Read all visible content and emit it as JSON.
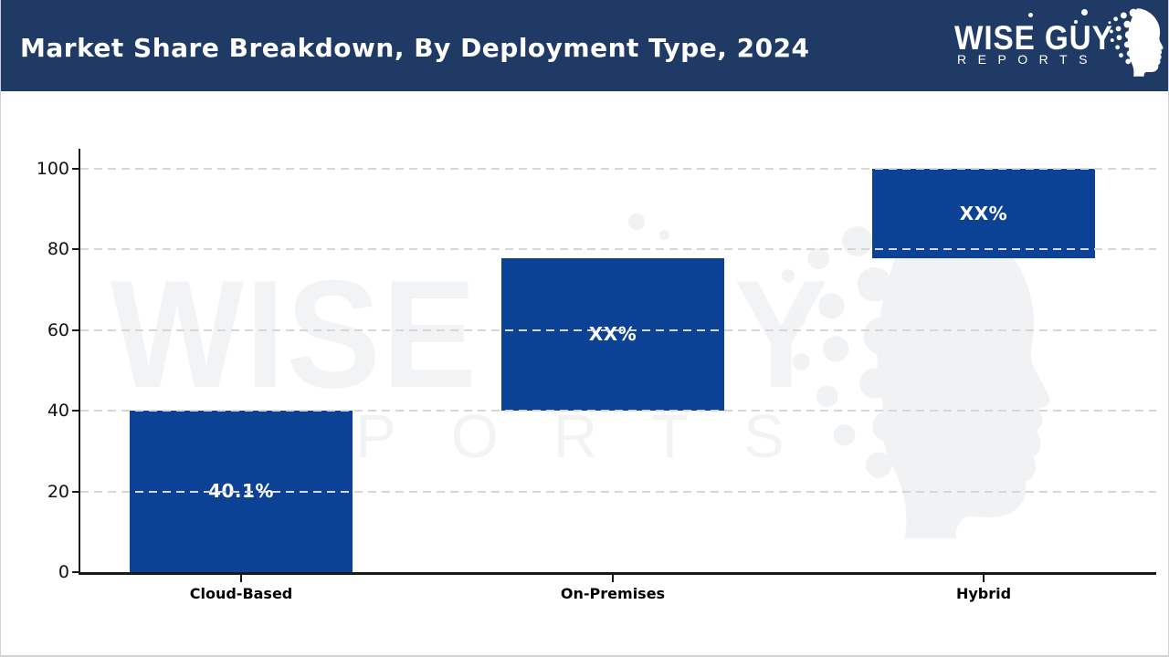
{
  "header": {
    "title": "Market Share Breakdown, By Deployment Type, 2024",
    "logo": {
      "line1": "WISE GUY",
      "line2": "REPORTS"
    }
  },
  "watermark": {
    "line1": "WISE GUY",
    "line2": "REPORTS"
  },
  "chart_data": {
    "type": "bar",
    "subtype": "stacked-waterfall-segments",
    "title": "Market Share Breakdown, By Deployment Type, 2024",
    "categories": [
      "Cloud-Based",
      "On-Premises",
      "Hybrid"
    ],
    "segments": [
      {
        "category": "Cloud-Based",
        "start": 0,
        "end": 40.1,
        "label": "40.1%"
      },
      {
        "category": "On-Premises",
        "start": 40.1,
        "end": 77.8,
        "label": "XX%"
      },
      {
        "category": "Hybrid",
        "start": 77.8,
        "end": 100,
        "label": "XX%"
      }
    ],
    "yticks": [
      0,
      20,
      40,
      60,
      80,
      100
    ],
    "ylim": [
      0,
      104.9
    ],
    "xlabel": "",
    "ylabel": "",
    "grid": "dashed-horizontal",
    "legend": "none",
    "bar_color": "#0C4296",
    "bar_label_color": "#FFFFFF",
    "header_color": "#203A66",
    "watermark_color": "#F2F3F5"
  }
}
